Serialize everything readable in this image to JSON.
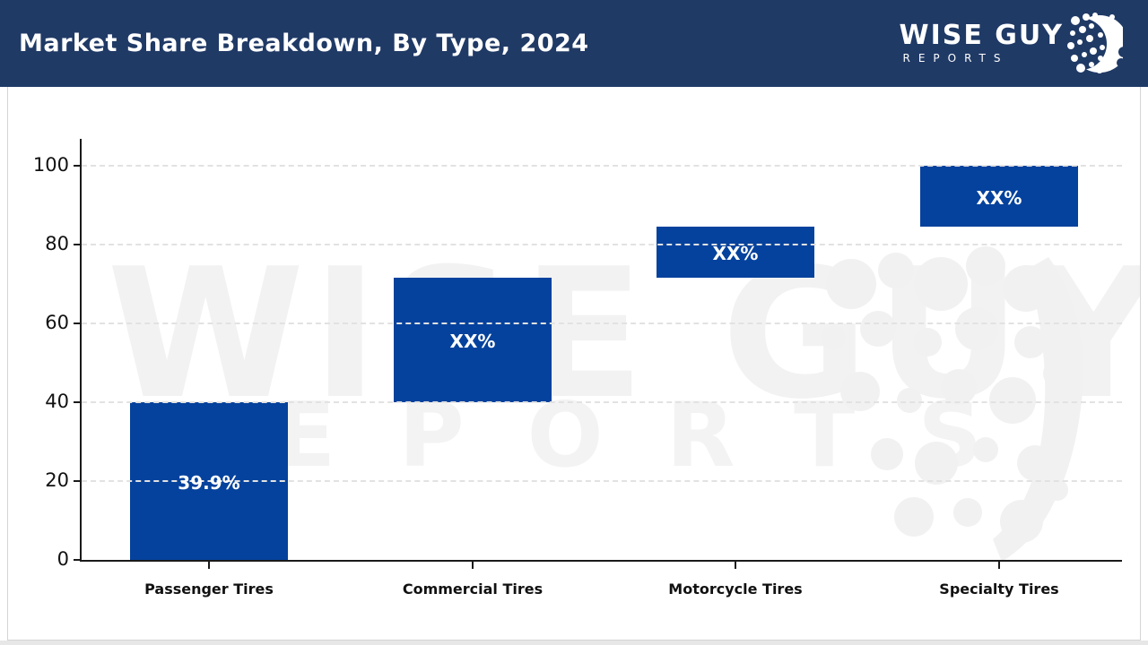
{
  "header": {
    "title": "Market Share Breakdown, By Type, 2024",
    "logo": {
      "line1": "WISE GUY",
      "line2": "REPORTS"
    }
  },
  "watermark": {
    "line1": "WISE GUY",
    "line2": "REPORTS"
  },
  "chart_data": {
    "type": "bar",
    "subtype": "waterfall",
    "title": "Market Share Breakdown, By Type, 2024",
    "categories": [
      "Passenger Tires",
      "Commercial Tires",
      "Motorcycle Tires",
      "Specialty Tires"
    ],
    "segments": [
      {
        "category": "Passenger Tires",
        "start": 0,
        "end": 39.9,
        "label": "39.9%"
      },
      {
        "category": "Commercial Tires",
        "start": 39.9,
        "end": 71.7,
        "label": "XX%"
      },
      {
        "category": "Motorcycle Tires",
        "start": 71.7,
        "end": 84.6,
        "label": "XX%"
      },
      {
        "category": "Specialty Tires",
        "start": 84.6,
        "end": 100,
        "label": "XX%"
      }
    ],
    "ylim": [
      0,
      100
    ],
    "yticks": [
      0,
      20,
      40,
      60,
      80,
      100
    ],
    "xlabel": "",
    "ylabel": "",
    "grid": "horizontal-dashed",
    "legend": "none",
    "bar_color": "#05429d",
    "bar_label_color": "#ffffff"
  }
}
